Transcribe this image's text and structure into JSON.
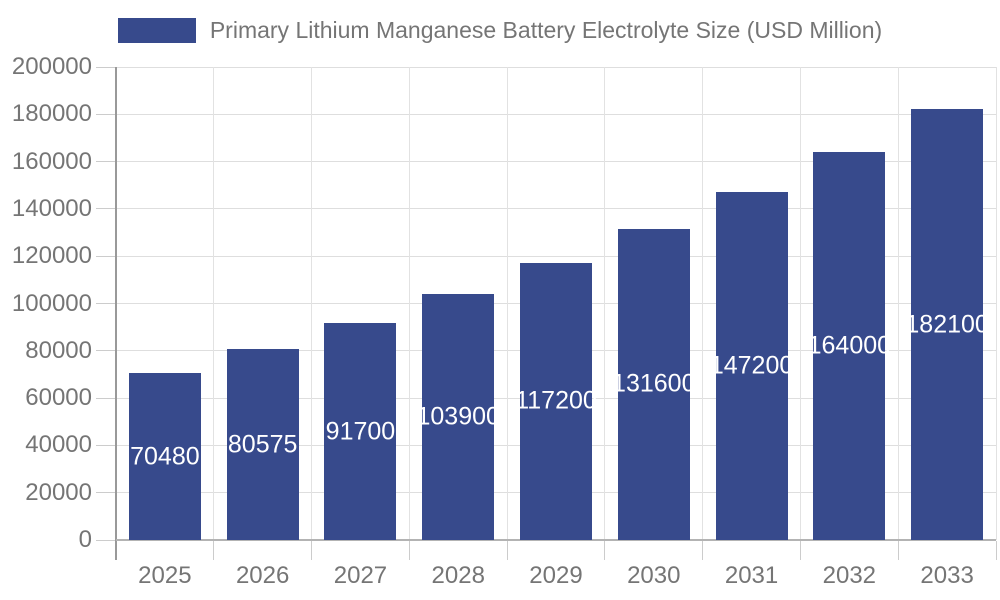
{
  "chart_data": {
    "type": "bar",
    "title": "Primary Lithium Manganese Battery Electrolyte Size (USD Million)",
    "series": [
      {
        "name": "Primary Lithium Manganese Battery Electrolyte Size (USD Million)",
        "values": [
          70480,
          80575,
          91700,
          103900,
          117200,
          131600,
          147200,
          164000,
          182100
        ]
      }
    ],
    "categories": [
      "2025",
      "2026",
      "2027",
      "2028",
      "2029",
      "2030",
      "2031",
      "2032",
      "2033"
    ],
    "value_labels": [
      "70480",
      "80575",
      "91700",
      "103900",
      "117200",
      "131600",
      "147200",
      "164000",
      "182100"
    ],
    "xlabel": "",
    "ylabel": "",
    "ylim": [
      0,
      200000
    ],
    "y_tick_step": 20000,
    "y_tick_labels": [
      "0",
      "20000",
      "40000",
      "60000",
      "80000",
      "100000",
      "120000",
      "140000",
      "160000",
      "180000",
      "200000"
    ],
    "grid": true,
    "legend_position": "top",
    "colors": {
      "bar_fill": "#374A8C",
      "bar_value_text": "#FFFFFF",
      "axis_text": "#757575",
      "legend_text": "#757575",
      "background": "#FFFFFF"
    }
  }
}
